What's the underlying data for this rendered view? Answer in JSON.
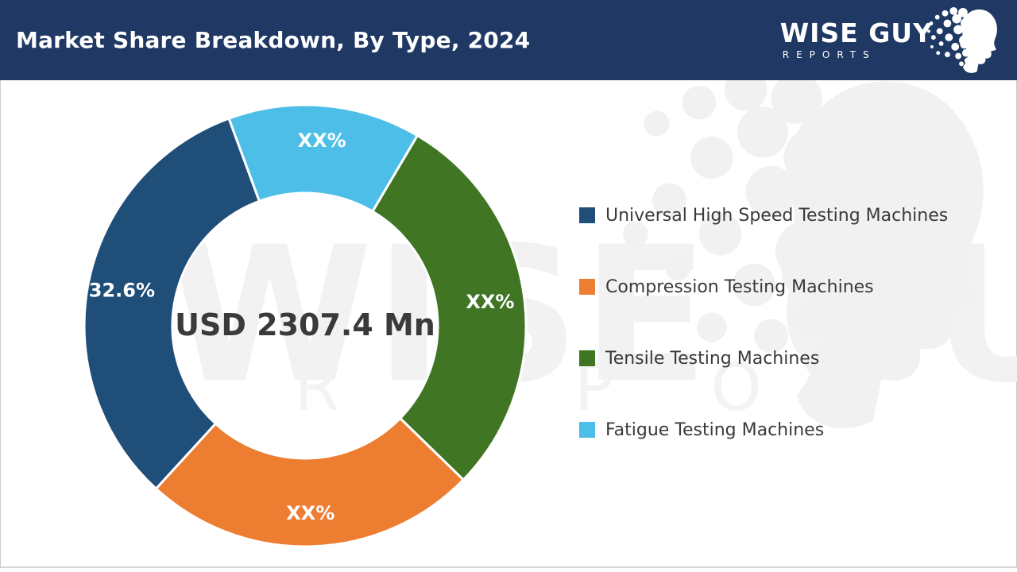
{
  "header": {
    "title": "Market Share Breakdown, By Type, 2024",
    "background_color": "#1f3864",
    "logo": {
      "line1": "WISE GUY",
      "line2": "REPORTS"
    }
  },
  "watermark": {
    "line1": "WISE GUY",
    "line2": "R E P O"
  },
  "chart_data": {
    "type": "pie",
    "subtype": "donut",
    "title": "Market Share Breakdown, By Type, 2024",
    "center_label": "USD 2307.4 Mn",
    "legend_position": "right",
    "start_angle_cw_from_top": -20.2,
    "draw_sequence": [
      3,
      2,
      1,
      0
    ],
    "segments": [
      {
        "name": "Universal High Speed Testing Machines",
        "display_label": "32.6%",
        "value": 32.6,
        "color": "#1f4e79"
      },
      {
        "name": "Compression Testing Machines",
        "display_label": "XX%",
        "value": 24.5,
        "color": "#ed7d31"
      },
      {
        "name": "Tensile Testing Machines",
        "display_label": "XX%",
        "value": 28.8,
        "color": "#3f7523"
      },
      {
        "name": "Fatigue Testing Machines",
        "display_label": "XX%",
        "value": 14.1,
        "color": "#4dbee8"
      }
    ]
  }
}
